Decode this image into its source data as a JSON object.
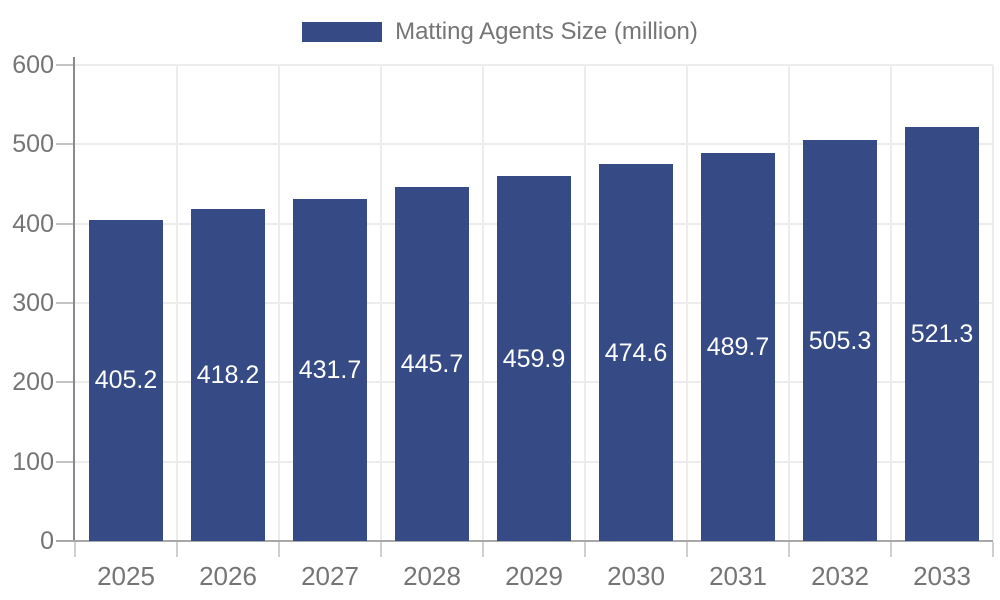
{
  "legend": {
    "label": "Matting Agents Size (million)"
  },
  "colors": {
    "bar": "#364a85",
    "axis_text": "#757575",
    "bar_label_text": "#ffffff"
  },
  "chart_data": {
    "type": "bar",
    "title": "Matting Agents Size (million)",
    "categories": [
      "2025",
      "2026",
      "2027",
      "2028",
      "2029",
      "2030",
      "2031",
      "2032",
      "2033"
    ],
    "series": [
      {
        "name": "Matting Agents Size (million)",
        "values": [
          405.2,
          418.2,
          431.7,
          445.7,
          459.9,
          474.6,
          489.7,
          505.3,
          521.3
        ]
      }
    ],
    "value_labels": [
      "405.2",
      "418.2",
      "431.7",
      "445.7",
      "459.9",
      "474.6",
      "489.7",
      "505.3",
      "521.3"
    ],
    "xlabel": "",
    "ylabel": "",
    "ylim": [
      0,
      600
    ],
    "yticks": [
      0,
      100,
      200,
      300,
      400,
      500,
      600
    ],
    "grid": true,
    "legend_position": "top-center",
    "value_label_position": "center-of-bar"
  }
}
